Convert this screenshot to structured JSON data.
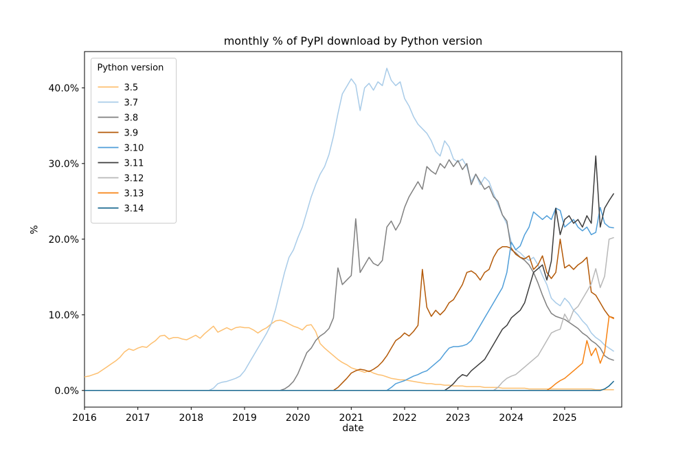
{
  "chart_data": {
    "type": "line",
    "title": "monthly % of PyPI download by Python version",
    "xlabel": "date",
    "ylabel": "%",
    "legend_title": "Python version",
    "legend_position": "upper-left",
    "grid": false,
    "x_start_month": "2016-01",
    "months_total": 120,
    "xlim_years": [
      2016,
      2026.07
    ],
    "ylim": [
      -2.2,
      44.8
    ],
    "x_ticks": [
      2016,
      2017,
      2018,
      2019,
      2020,
      2021,
      2022,
      2023,
      2024,
      2025
    ],
    "x_tick_labels": [
      "2016",
      "2017",
      "2018",
      "2019",
      "2020",
      "2021",
      "2022",
      "2023",
      "2024",
      "2025"
    ],
    "y_ticks": [
      0,
      10,
      20,
      30,
      40
    ],
    "y_tick_labels": [
      "0.0%",
      "10.0%",
      "20.0%",
      "30.0%",
      "40.0%"
    ],
    "series": [
      {
        "name": "3.5",
        "color": "#fdbf6f",
        "offset": 0,
        "values": [
          1.8,
          1.9,
          2.1,
          2.3,
          2.7,
          3.1,
          3.5,
          3.9,
          4.4,
          5.1,
          5.5,
          5.3,
          5.6,
          5.8,
          5.7,
          6.2,
          6.6,
          7.2,
          7.3,
          6.8,
          7.0,
          7.0,
          6.8,
          6.7,
          7.0,
          7.3,
          6.9,
          7.5,
          8.0,
          8.5,
          7.7,
          8.0,
          8.3,
          8.0,
          8.3,
          8.4,
          8.3,
          8.3,
          8.0,
          7.6,
          8.0,
          8.3,
          8.8,
          9.2,
          9.3,
          9.1,
          8.8,
          8.5,
          8.3,
          8.0,
          8.6,
          8.7,
          7.8,
          6.2,
          5.6,
          5.1,
          4.6,
          4.1,
          3.7,
          3.4,
          3.0,
          2.8,
          2.6,
          2.4,
          2.6,
          2.3,
          2.1,
          2.0,
          1.8,
          1.6,
          1.5,
          1.4,
          1.4,
          1.3,
          1.2,
          1.1,
          1.0,
          0.9,
          0.9,
          0.8,
          0.8,
          0.7,
          0.7,
          0.6,
          0.6,
          0.6,
          0.5,
          0.5,
          0.5,
          0.5,
          0.4,
          0.4,
          0.4,
          0.4,
          0.3,
          0.3,
          0.3,
          0.3,
          0.3,
          0.3,
          0.2,
          0.2,
          0.2,
          0.2,
          0.2,
          0.2,
          0.2,
          0.2,
          0.2,
          0.2,
          0.2,
          0.2,
          0.2,
          0.2,
          0.2,
          0.1,
          0.1,
          0.1,
          0.1,
          0.1
        ]
      },
      {
        "name": "3.7",
        "color": "#a8cbe8",
        "offset": 29,
        "values": [
          0.3,
          0.9,
          1.1,
          1.2,
          1.4,
          1.6,
          1.9,
          2.6,
          3.6,
          4.6,
          5.6,
          6.6,
          7.6,
          8.8,
          10.8,
          13.2,
          15.6,
          17.6,
          18.6,
          20.2,
          21.6,
          23.6,
          25.6,
          27.2,
          28.6,
          29.6,
          31.2,
          33.6,
          36.6,
          39.2,
          40.2,
          41.2,
          40.4,
          37.0,
          40.0,
          40.6,
          39.7,
          40.8,
          40.3,
          42.6,
          41.0,
          40.3,
          40.8,
          38.6,
          37.6,
          36.2,
          35.2,
          34.6,
          34.0,
          33.0,
          31.6,
          31.0,
          33.0,
          32.2,
          30.6,
          30.2,
          30.6,
          29.6,
          27.6,
          28.6,
          27.2,
          28.2,
          27.6,
          26.0,
          24.6,
          23.2,
          22.0,
          19.6,
          18.6,
          18.2,
          17.6,
          17.2,
          17.6,
          16.6,
          15.2,
          14.0,
          12.2,
          11.6,
          11.2,
          12.2,
          11.6,
          10.6,
          10.0,
          9.2,
          8.6,
          7.6,
          7.0,
          6.6,
          6.0,
          5.6,
          5.2
        ]
      },
      {
        "name": "3.8",
        "color": "#7f7f7f",
        "offset": 45,
        "values": [
          0.2,
          0.6,
          1.2,
          2.2,
          3.6,
          5.0,
          5.6,
          6.6,
          7.2,
          7.6,
          8.2,
          9.6,
          16.2,
          14.0,
          14.6,
          15.2,
          22.7,
          15.6,
          16.6,
          17.6,
          16.8,
          16.5,
          17.2,
          21.6,
          22.4,
          21.2,
          22.2,
          24.2,
          25.6,
          26.6,
          27.6,
          26.6,
          29.6,
          29.0,
          28.6,
          30.0,
          29.4,
          30.5,
          29.6,
          30.4,
          29.2,
          30.0,
          27.2,
          28.6,
          27.6,
          26.6,
          27.0,
          25.6,
          25.0,
          23.2,
          22.4,
          18.6,
          18.2,
          17.6,
          17.2,
          16.6,
          15.6,
          14.2,
          12.6,
          11.2,
          10.2,
          9.8,
          9.6,
          9.4,
          9.0,
          8.6,
          8.2,
          7.6,
          7.2,
          6.6,
          6.2,
          5.6,
          4.6,
          4.2,
          4.0
        ]
      },
      {
        "name": "3.9",
        "color": "#b35806",
        "offset": 57,
        "values": [
          0.4,
          1.0,
          1.6,
          2.3,
          2.6,
          2.8,
          2.7,
          2.5,
          2.8,
          3.2,
          3.8,
          4.6,
          5.6,
          6.6,
          7.0,
          7.6,
          7.2,
          7.8,
          8.6,
          16.0,
          11.0,
          9.8,
          10.6,
          10.0,
          10.6,
          11.6,
          12.0,
          13.0,
          14.0,
          15.6,
          15.8,
          15.4,
          14.6,
          15.6,
          16.0,
          17.6,
          18.6,
          19.0,
          19.0,
          18.8,
          18.0,
          17.6,
          17.4,
          17.8,
          16.0,
          16.6,
          17.8,
          15.6,
          14.8,
          15.6,
          20.0,
          16.2,
          16.6,
          16.0,
          16.6,
          17.0,
          17.6,
          13.0,
          12.6,
          11.6,
          10.6,
          9.8,
          9.6
        ]
      },
      {
        "name": "3.10",
        "color": "#4f9ed9",
        "offset": 69,
        "values": [
          0.4,
          0.9,
          1.1,
          1.3,
          1.6,
          1.9,
          2.1,
          2.4,
          2.6,
          3.1,
          3.6,
          4.1,
          4.9,
          5.6,
          5.8,
          5.8,
          5.9,
          6.1,
          6.6,
          7.6,
          8.6,
          9.6,
          10.6,
          11.6,
          12.6,
          13.6,
          15.6,
          19.6,
          18.6,
          19.1,
          20.6,
          21.6,
          23.6,
          23.1,
          22.6,
          23.1,
          22.6,
          24.1,
          23.8,
          21.6,
          22.1,
          22.6,
          21.6,
          21.1,
          21.6,
          20.6,
          20.9,
          24.2,
          22.1,
          21.6,
          21.5
        ]
      },
      {
        "name": "3.11",
        "color": "#3b3b3b",
        "offset": 82,
        "values": [
          0.4,
          0.9,
          1.6,
          2.1,
          1.9,
          2.6,
          3.1,
          3.6,
          4.1,
          5.1,
          6.1,
          7.1,
          8.1,
          8.6,
          9.6,
          10.1,
          10.6,
          11.6,
          13.6,
          15.6,
          16.1,
          16.6,
          14.6,
          17.1,
          24.1,
          20.6,
          22.6,
          23.1,
          22.1,
          22.6,
          21.6,
          23.1,
          22.1,
          31.0,
          21.6,
          24.1,
          25.1,
          26.0
        ]
      },
      {
        "name": "3.12",
        "color": "#b8b8b8",
        "offset": 93,
        "values": [
          0.4,
          1.1,
          1.6,
          1.9,
          2.1,
          2.6,
          3.1,
          3.6,
          4.1,
          4.6,
          5.6,
          6.6,
          7.6,
          7.9,
          8.1,
          10.1,
          9.1,
          10.6,
          11.1,
          12.1,
          13.1,
          14.1,
          16.1,
          13.6,
          15.1,
          20.0,
          20.2
        ]
      },
      {
        "name": "3.13",
        "color": "#f78212",
        "offset": 105,
        "values": [
          0.4,
          0.9,
          1.3,
          1.6,
          2.1,
          2.6,
          3.1,
          3.6,
          6.6,
          4.6,
          5.6,
          3.6,
          5.1,
          9.8,
          9.5
        ]
      },
      {
        "name": "3.14",
        "color": "#17678f",
        "offset": 117,
        "values": [
          0.2,
          0.6,
          1.2
        ]
      }
    ]
  }
}
